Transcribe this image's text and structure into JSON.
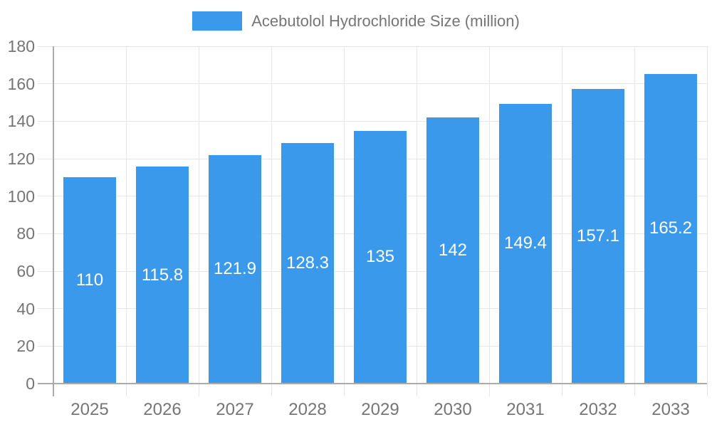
{
  "legend": {
    "label": "Acebutolol Hydrochloride Size (million)",
    "swatch_color": "#3B99EC"
  },
  "chart_data": {
    "type": "bar",
    "title": "",
    "categories": [
      "2025",
      "2026",
      "2027",
      "2028",
      "2029",
      "2030",
      "2031",
      "2032",
      "2033"
    ],
    "series": [
      {
        "name": "Acebutolol Hydrochloride Size (million)",
        "values": [
          110,
          115.8,
          121.9,
          128.3,
          135,
          142,
          149.4,
          157.1,
          165.2
        ]
      }
    ],
    "value_labels": [
      "110",
      "115.8",
      "121.9",
      "128.3",
      "135",
      "142",
      "149.4",
      "157.1",
      "165.2"
    ],
    "xlabel": "",
    "ylabel": "",
    "ylim": [
      0,
      180
    ],
    "ytick_step": 20,
    "ytick_labels": [
      "0",
      "20",
      "40",
      "60",
      "80",
      "100",
      "120",
      "140",
      "160",
      "180"
    ],
    "grid": true,
    "legend_position": "top",
    "colors": {
      "bar": "#3B99EC",
      "axis_line": "#ababab",
      "grid_line": "#e6e6e6",
      "tick_line": "#d9d9d9",
      "axis_text": "#757575",
      "value_text": "#ffffff",
      "background": "#ffffff"
    }
  }
}
